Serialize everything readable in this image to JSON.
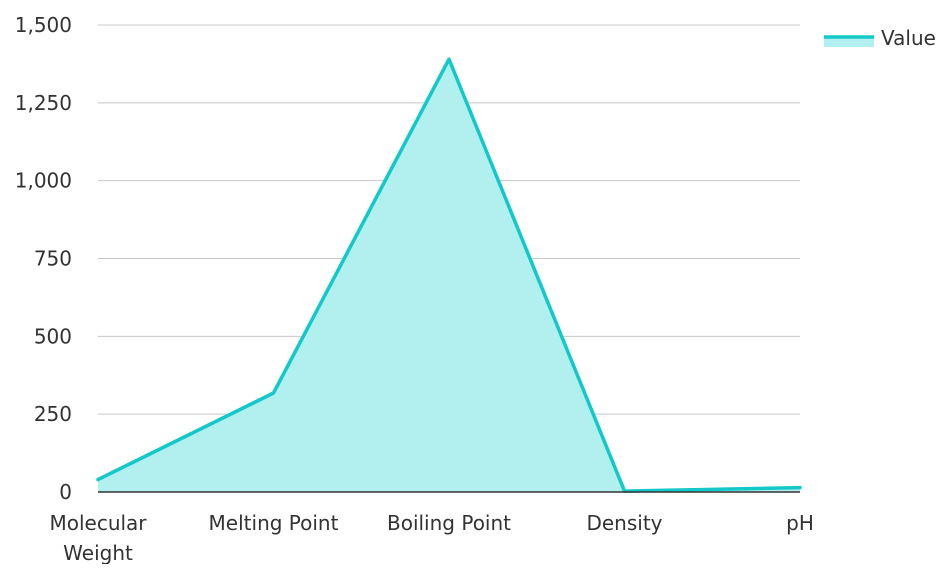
{
  "chart_data": {
    "type": "area",
    "title": "",
    "xlabel": "",
    "ylabel": "",
    "categories": [
      "Molecular Weight",
      "Melting Point",
      "Boiling Point",
      "Density",
      "pH"
    ],
    "category_label_lines": [
      [
        "Molecular",
        "Weight"
      ],
      [
        "Melting Point"
      ],
      [
        "Boiling Point"
      ],
      [
        "Density"
      ],
      [
        "pH"
      ]
    ],
    "series": [
      {
        "name": "Value",
        "values": [
          40,
          318,
          1390,
          3,
          14
        ]
      }
    ],
    "ylim": [
      0,
      1500
    ],
    "yticks": [
      0,
      250,
      500,
      750,
      1000,
      1250,
      1500
    ],
    "ytick_labels": [
      "0",
      "250",
      "500",
      "750",
      "1,000",
      "1,250",
      "1,500"
    ],
    "grid": true,
    "legend_position": "top-right",
    "colors": {
      "line": "#12c8c8",
      "fill": "#b2efef",
      "grid": "#c8c8c8",
      "axis": "#333333"
    }
  }
}
